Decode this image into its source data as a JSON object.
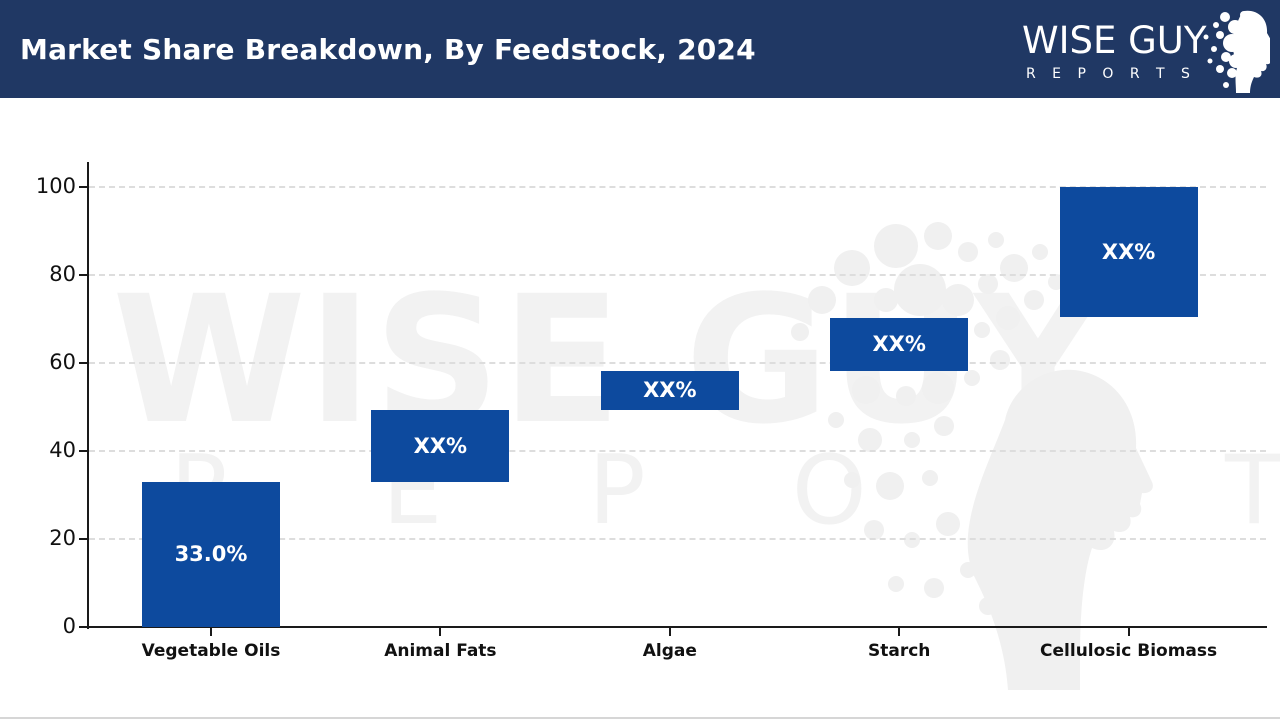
{
  "header": {
    "title": "Market Share Breakdown, By Feedstock, 2024",
    "logo": {
      "name": "WISE GUY",
      "sub": "R E P O R T S"
    }
  },
  "watermark": {
    "line1": "WISE GUY",
    "line2": "R E P O R T S"
  },
  "colors": {
    "header_bg": "#203864",
    "bar": "#0d4a9e",
    "grid": "#dddddd",
    "axis": "#1a1a1a",
    "watermark": "#f2f2f2",
    "bar_label": "#ffffff"
  },
  "chart_data": {
    "type": "bar",
    "variant": "floating-waterfall",
    "title": "Market Share Breakdown, By Feedstock, 2024",
    "xlabel": "",
    "ylabel": "",
    "categories": [
      "Vegetable Oils",
      "Animal Fats",
      "Algae",
      "Starch",
      "Cellulosic Biomass"
    ],
    "segments": [
      {
        "category": "Vegetable Oils",
        "start": 0,
        "end": 33,
        "label": "33.0%"
      },
      {
        "category": "Animal Fats",
        "start": 33,
        "end": 49.4,
        "label": "XX%"
      },
      {
        "category": "Algae",
        "start": 49.4,
        "end": 58.1,
        "label": "XX%"
      },
      {
        "category": "Starch",
        "start": 58.2,
        "end": 70.3,
        "label": "XX%"
      },
      {
        "category": "Cellulosic Biomass",
        "start": 70.4,
        "end": 100,
        "label": "XX%"
      }
    ],
    "yticks": [
      0,
      20,
      40,
      60,
      80,
      100
    ],
    "ylim": [
      0,
      105
    ],
    "grid": "dashed-horizontal",
    "legend": "none"
  }
}
